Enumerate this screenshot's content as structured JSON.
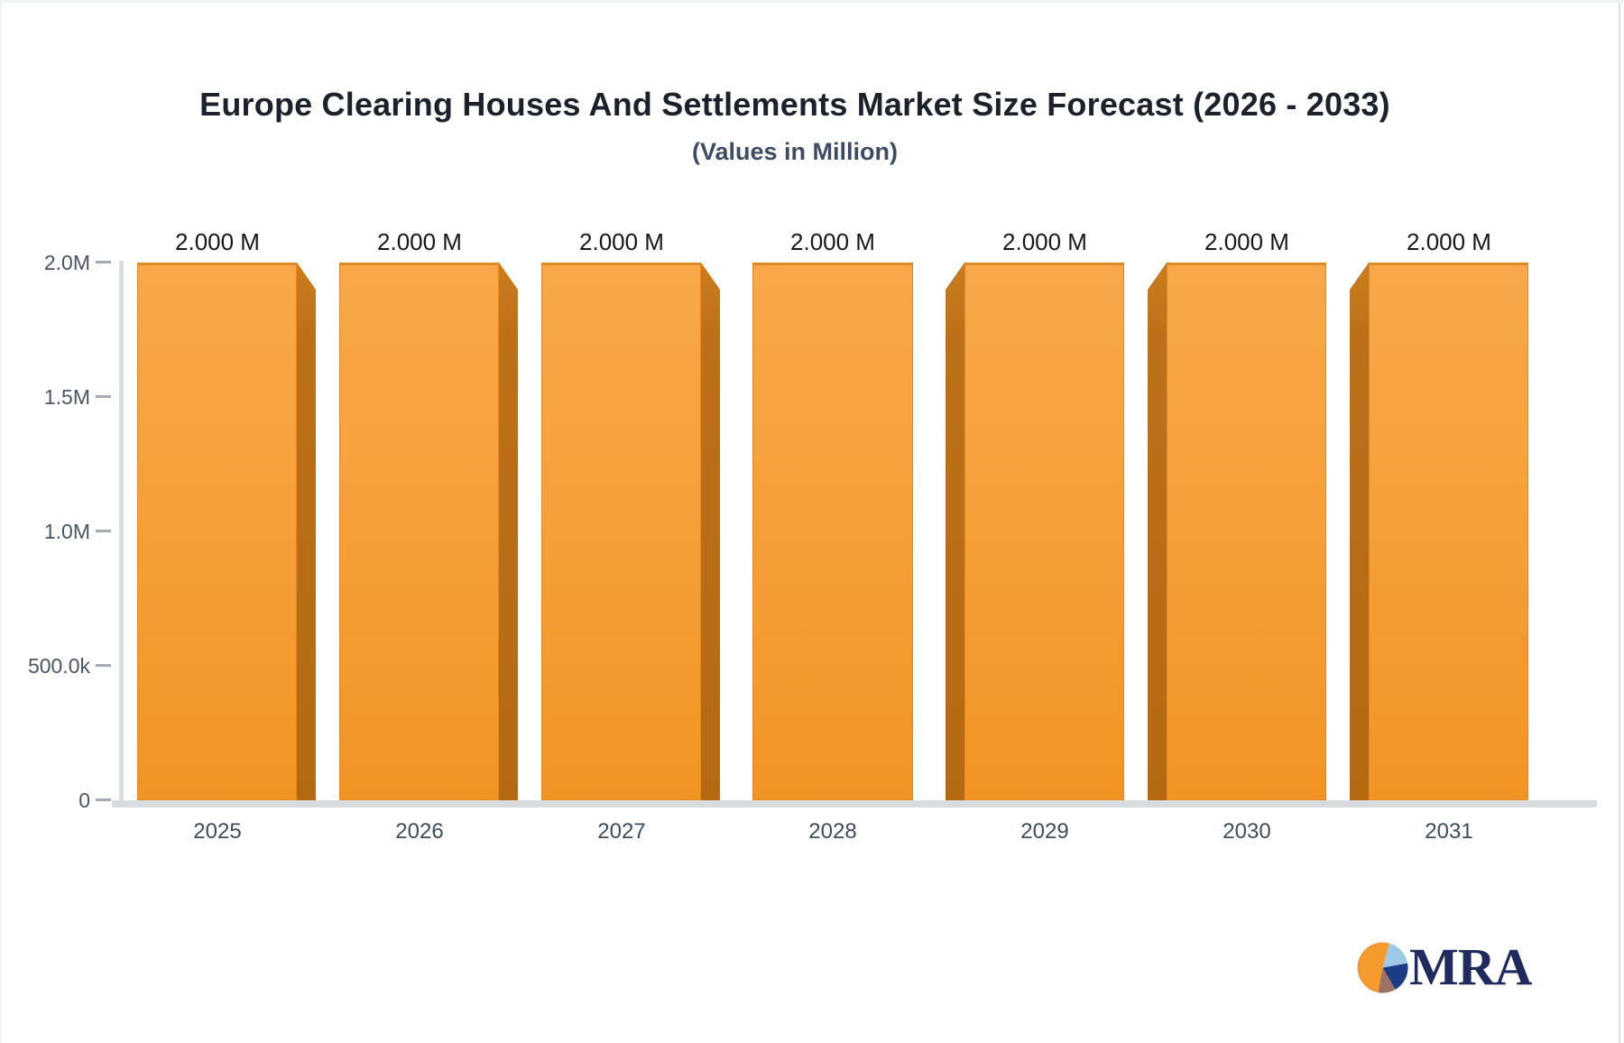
{
  "header": {
    "title": "Europe Clearing Houses And Settlements Market Size Forecast (2026 - 2033)",
    "subtitle": "(Values in Million)"
  },
  "chart_data": {
    "type": "bar",
    "title": "Europe Clearing Houses And Settlements Market Size Forecast (2026 - 2033)",
    "subtitle": "(Values in Million)",
    "unit": "Million",
    "categories": [
      "2025",
      "2026",
      "2027",
      "2028",
      "2029",
      "2030",
      "2031"
    ],
    "values": [
      2000000,
      2000000,
      2000000,
      2000000,
      2000000,
      2000000,
      2000000
    ],
    "bar_value_labels": [
      "2.000 M",
      "2.000 M",
      "2.000 M",
      "2.000 M",
      "2.000 M",
      "2.000 M",
      "2.000 M"
    ],
    "xlabel": "",
    "ylabel": "",
    "ylim": [
      0,
      2000000
    ],
    "yticks": [
      {
        "value": 2000000,
        "label": "2.0M"
      },
      {
        "value": 1500000,
        "label": "1.5M"
      },
      {
        "value": 1000000,
        "label": "1.0M"
      },
      {
        "value": 500000,
        "label": "500.0k"
      },
      {
        "value": 0,
        "label": "0"
      }
    ],
    "grid": false,
    "legend": false,
    "bar_style": "3d-bevel",
    "bar_face_color_top": "#f8a84a",
    "bar_face_color_bottom": "#f29424",
    "bar_side_color": "#bd7017",
    "bar_edge_color": "#dc8a26",
    "axis_line_color": "#d9dce0",
    "tick_mark_color": "#a5abb2",
    "axis_label_color": "#4a5565",
    "value_label_color": "#15191f"
  },
  "logo": {
    "text": "MRA",
    "text_color": "#1f2a5e",
    "pie_colors": {
      "orange": "#f49a2e",
      "light_blue": "#9fc9e8",
      "navy": "#1c3c86",
      "brown": "#9c7265"
    }
  }
}
